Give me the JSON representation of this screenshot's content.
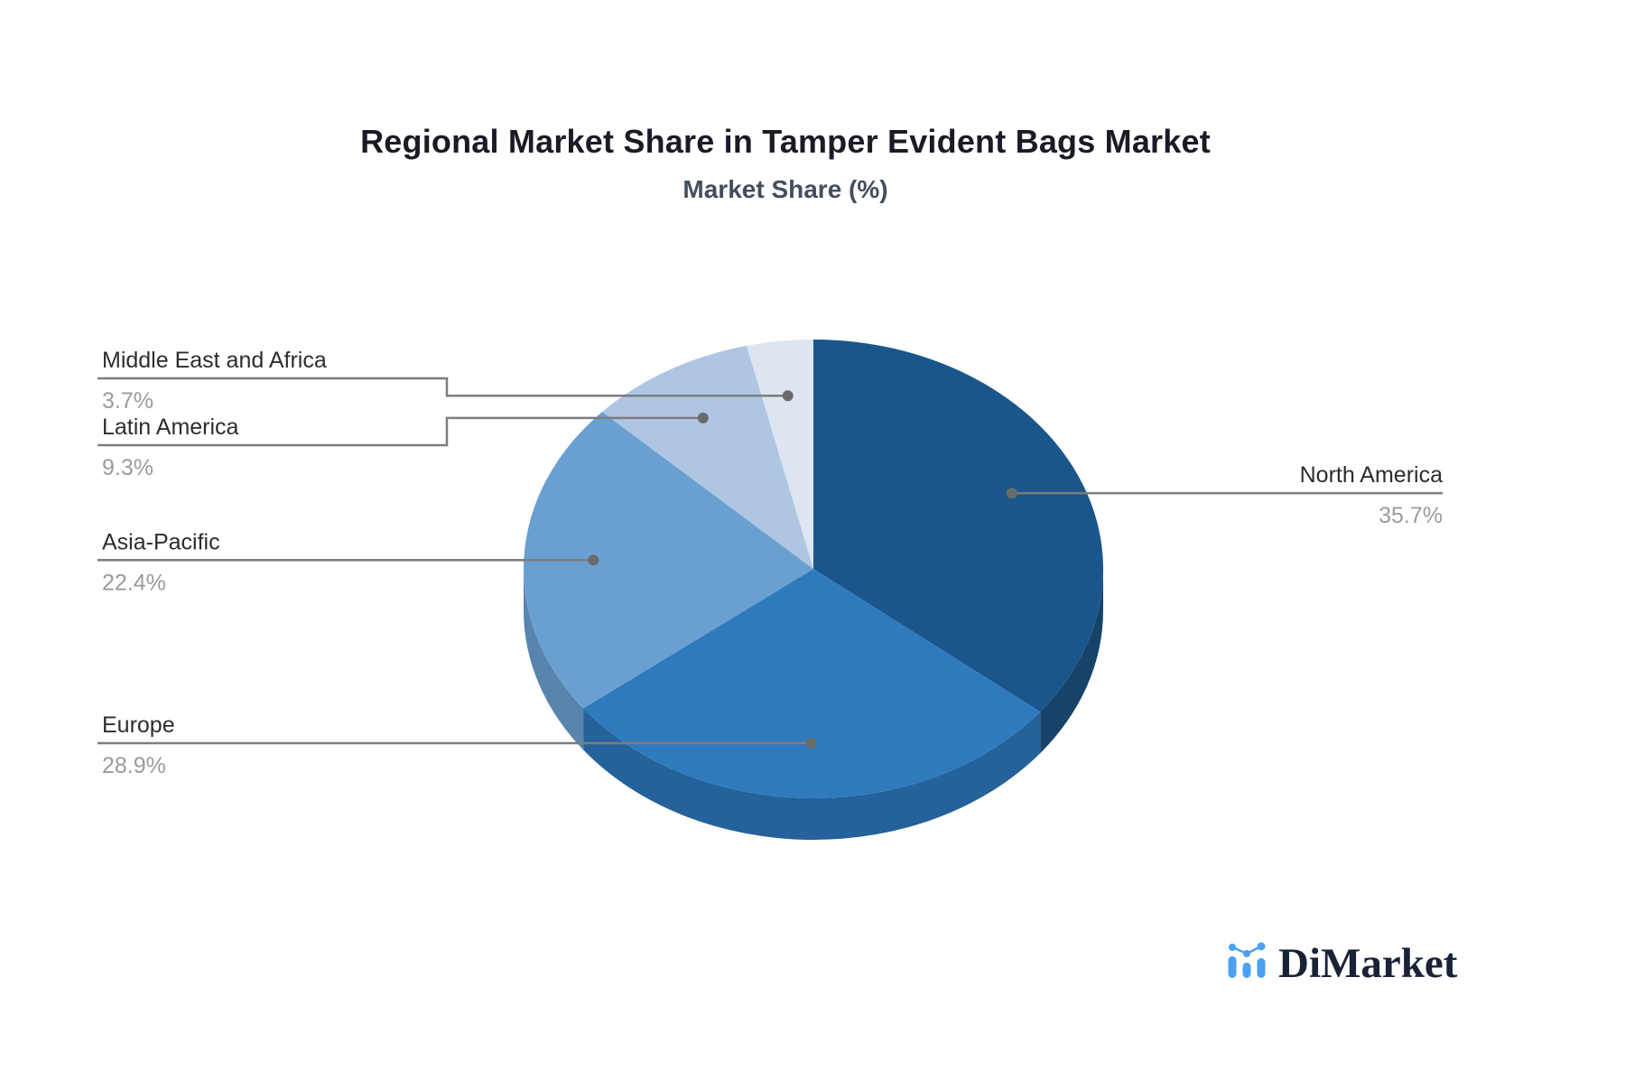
{
  "header": {
    "title": "Regional Market Share in Tamper Evident Bags Market",
    "subtitle": "Market Share (%)"
  },
  "logo": {
    "text": "DiMarket"
  },
  "chart_data": {
    "type": "pie",
    "title": "Regional Market Share in Tamper Evident Bags Market",
    "subtitle": "Market Share (%)",
    "unit": "%",
    "effect": "3d",
    "start_angle_deg": 0,
    "direction": "clockwise",
    "legend": "none",
    "slices": [
      {
        "label": "North America",
        "value": 35.7,
        "display": "35.7%",
        "color": "#1a568c",
        "side_color": "#174369"
      },
      {
        "label": "Europe",
        "value": 28.9,
        "display": "28.9%",
        "color": "#2e7abd",
        "side_color": "#25619a"
      },
      {
        "label": "Asia-Pacific",
        "value": 22.4,
        "display": "22.4%",
        "color": "#6a9fd2",
        "side_color": "#5884ae"
      },
      {
        "label": "Latin America",
        "value": 9.3,
        "display": "9.3%",
        "color": "#aec6e2",
        "side_color": "#8da9c7"
      },
      {
        "label": "Middle East and Africa",
        "value": 3.7,
        "display": "3.7%",
        "color": "#dce5f0",
        "side_color": "#b8c6d8"
      }
    ],
    "colors": {
      "connector": "#7d7d7d",
      "dot": "#6b6b6b",
      "label_text": "#2d2d2d",
      "percent_text": "#9b9b9b"
    }
  }
}
